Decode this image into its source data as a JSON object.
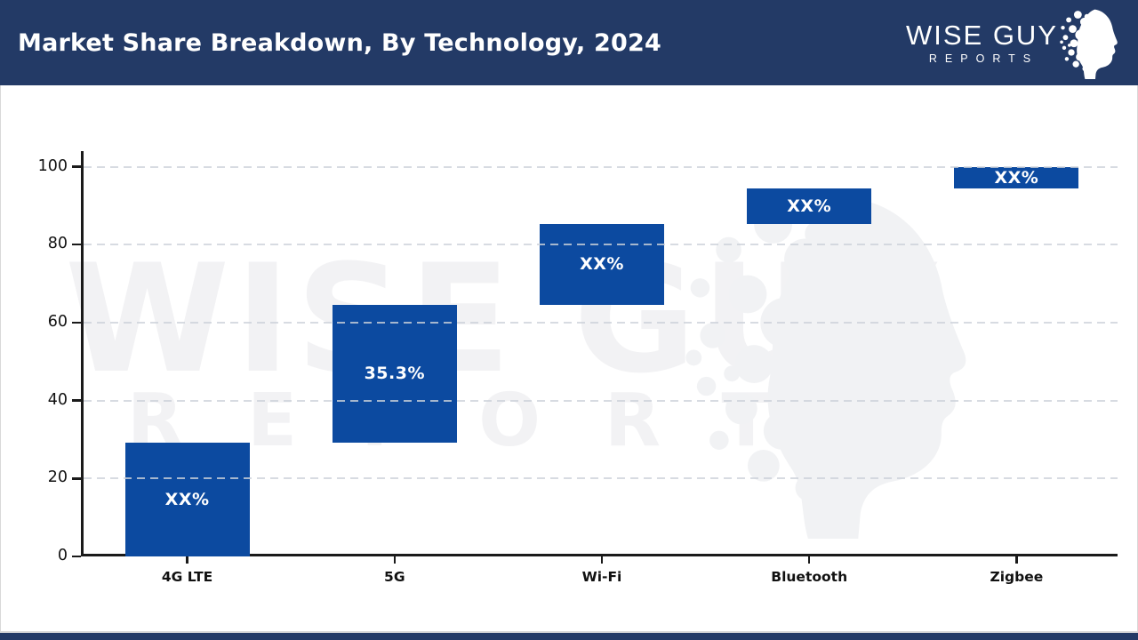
{
  "header": {
    "brand_line1": "WISE GUY",
    "brand_line2": "REPORTS"
  },
  "watermark": {
    "line1": "WISE GUY",
    "line2": "REPORTS"
  },
  "chart_data": {
    "type": "bar",
    "subtype": "waterfall",
    "title": "Market Share Breakdown, By Technology, 2024",
    "categories": [
      "4G LTE",
      "5G",
      "Wi-Fi",
      "Bluetooth",
      "Zigbee"
    ],
    "segments": [
      {
        "category": "4G LTE",
        "start": 0,
        "end": 29.3,
        "height_pct": 29.3,
        "label": "XX%"
      },
      {
        "category": "5G",
        "start": 29.3,
        "end": 64.6,
        "height_pct": 35.3,
        "label": "35.3%"
      },
      {
        "category": "Wi-Fi",
        "start": 64.6,
        "end": 85.3,
        "height_pct": 20.7,
        "label": "XX%"
      },
      {
        "category": "Bluetooth",
        "start": 85.3,
        "end": 94.4,
        "height_pct": 9.1,
        "label": "XX%"
      },
      {
        "category": "Zigbee",
        "start": 94.4,
        "end": 100,
        "height_pct": 5.6,
        "label": "XX%"
      }
    ],
    "yticks": [
      0,
      20,
      40,
      60,
      80,
      100
    ],
    "ylim": [
      0,
      104
    ],
    "xlabel": "",
    "ylabel": "",
    "grid": "horizontal-dashed",
    "legend": "none",
    "bar_color": "#0c4aa0"
  },
  "colors": {
    "header_bg": "#233a66",
    "footer_bg": "#233a66",
    "bar": "#0c4aa0",
    "grid": "#d9dde3",
    "axis": "#1a1a1a",
    "bar_label_text": "#ffffff",
    "tick_text": "#111111",
    "watermark": "#f2f2f4"
  }
}
